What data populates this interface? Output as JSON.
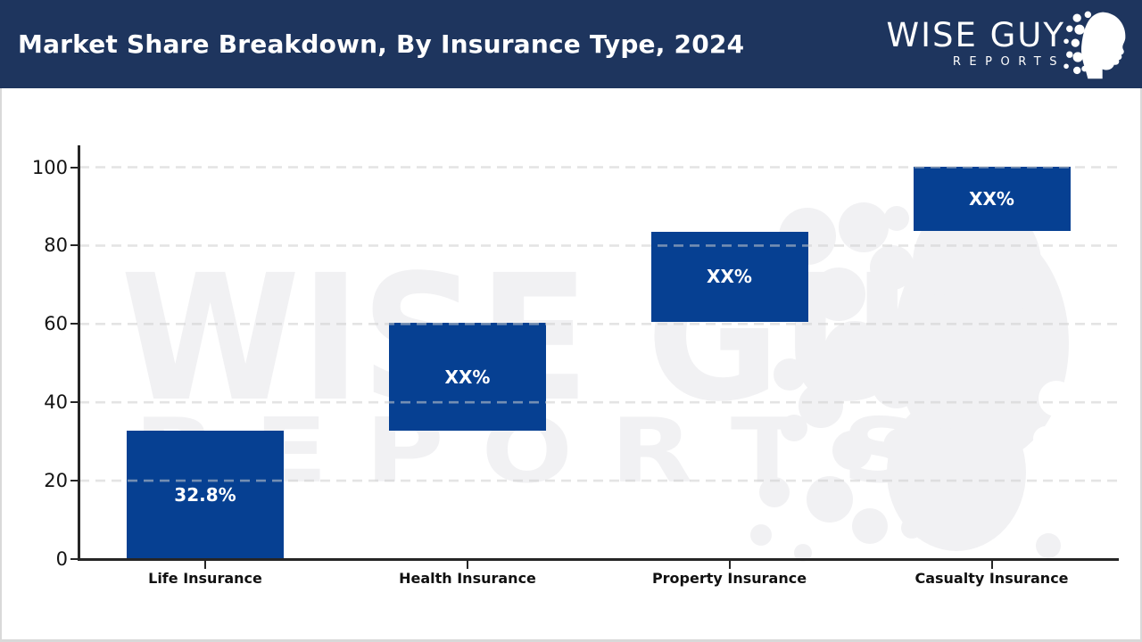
{
  "header": {
    "title": "Market Share Breakdown, By Insurance Type, 2024",
    "logo": {
      "line1": "WISE GUY",
      "line2": "REPORTS"
    }
  },
  "watermark": {
    "line1": "WISE GUY",
    "line2": "R E P O R T S"
  },
  "chart_data": {
    "type": "bar",
    "subtype": "waterfall",
    "title": "Market Share Breakdown, By Insurance Type, 2024",
    "xlabel": "",
    "ylabel": "",
    "ylim": [
      0,
      105
    ],
    "grid": "horizontal-dashed",
    "legend": "none",
    "categories": [
      "Life Insurance",
      "Health Insurance",
      "Property Insurance",
      "Casualty Insurance"
    ],
    "bars": [
      {
        "category": "Life Insurance",
        "start": 0,
        "end": 32.8,
        "value": 32.8,
        "label": "32.8%"
      },
      {
        "category": "Health Insurance",
        "start": 32.8,
        "end": 60.2,
        "value": 27.4,
        "label": "XX%"
      },
      {
        "category": "Property Insurance",
        "start": 60.5,
        "end": 83.6,
        "value": 23.1,
        "label": "XX%"
      },
      {
        "category": "Casualty Insurance",
        "start": 83.7,
        "end": 100.2,
        "value": 16.5,
        "label": "XX%"
      }
    ],
    "yticks": [
      {
        "value": 0,
        "label": "0"
      },
      {
        "value": 20,
        "label": "20"
      },
      {
        "value": 40,
        "label": "40"
      },
      {
        "value": 60,
        "label": "60"
      },
      {
        "value": 80,
        "label": "80"
      },
      {
        "value": 100,
        "label": "100"
      }
    ],
    "colors": {
      "bar": "#064092",
      "header_bg": "#1e355e",
      "title_text": "#ffffff",
      "bar_label_text": "#ffffff",
      "axis": "#262626",
      "tick_label": "#141414",
      "gridline": "#cdcdcd",
      "watermark": "#f1f1f3",
      "frame": "#d9d9d9"
    }
  }
}
